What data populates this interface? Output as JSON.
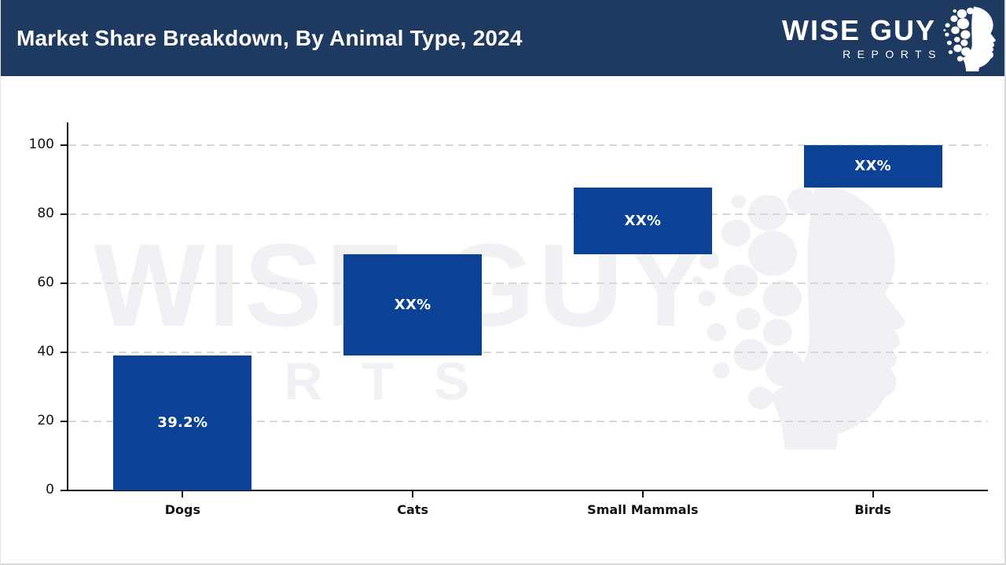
{
  "header": {
    "title": "Market Share Breakdown, By Animal Type, 2024",
    "logo": {
      "line1": "WISE GUY",
      "line2": "REPORTS"
    }
  },
  "watermark": {
    "line1": "WISE GUY",
    "line2": "PORTS"
  },
  "colors": {
    "header_bg": "#1f3a61",
    "bar": "#0b4295",
    "grid": "#d8d8d8",
    "watermark": "#f0f1f4",
    "bar_label": "#ffffff",
    "axis": "#111111"
  },
  "chart_data": {
    "type": "bar",
    "subtype": "waterfall",
    "title": "Market Share Breakdown, By Animal Type, 2024",
    "xlabel": "",
    "ylabel": "",
    "categories": [
      "Dogs",
      "Cats",
      "Small Mammals",
      "Birds"
    ],
    "segments": [
      {
        "category": "Dogs",
        "start": 0,
        "end": 39.2,
        "value": 39.2,
        "label": "39.2%"
      },
      {
        "category": "Cats",
        "start": 39.2,
        "end": 68.3,
        "value": 29.1,
        "label": "XX%"
      },
      {
        "category": "Small Mammals",
        "start": 68.3,
        "end": 87.8,
        "value": 19.5,
        "label": "XX%"
      },
      {
        "category": "Birds",
        "start": 87.8,
        "end": 100,
        "value": 12.2,
        "label": "XX%"
      }
    ],
    "yticks": [
      0,
      20,
      40,
      60,
      80,
      100
    ],
    "ylim": [
      0,
      106
    ],
    "grid": "horizontal-dashed",
    "legend": null
  }
}
